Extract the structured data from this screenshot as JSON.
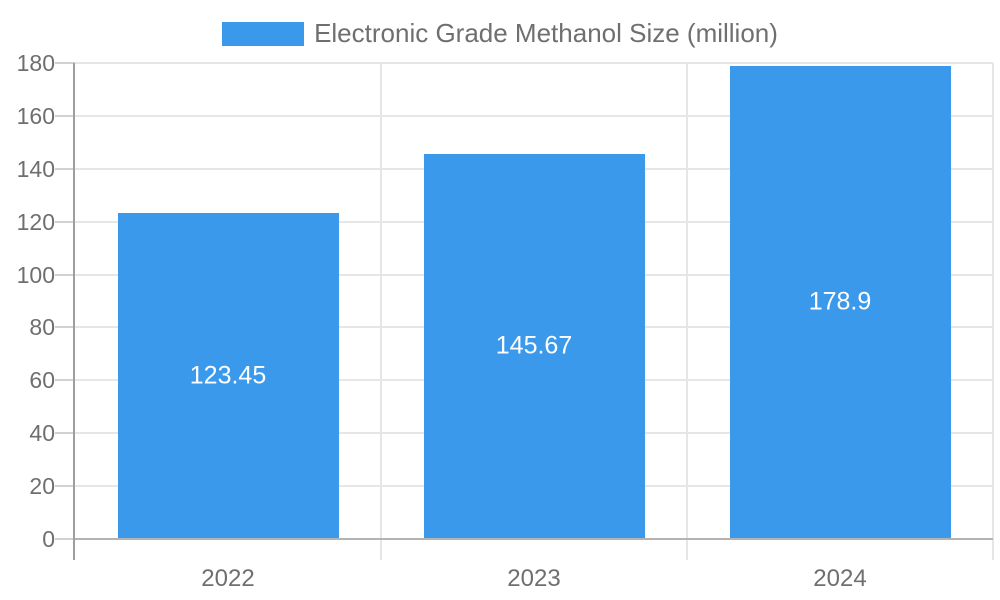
{
  "legend": {
    "label": "Electronic Grade Methanol Size (million)"
  },
  "colors": {
    "background": "#ffffff",
    "bar": "#3b99ec",
    "bar_label": "#ffffff",
    "axis_text": "#6f6f6f",
    "grid": "#e6e6e6",
    "tick": "#d2d2d2",
    "axis_line": "#9e9e9e",
    "baseline": "#b3b3b3"
  },
  "chart_data": {
    "type": "bar",
    "categories": [
      "2022",
      "2023",
      "2024"
    ],
    "series": [
      {
        "name": "Electronic Grade Methanol Size (million)",
        "values": [
          123.45,
          145.67,
          178.9
        ]
      }
    ],
    "bar_labels": [
      "123.45",
      "145.67",
      "178.9"
    ],
    "ylim": [
      0,
      180
    ],
    "yticks": [
      0,
      20,
      40,
      60,
      80,
      100,
      120,
      140,
      160,
      180
    ],
    "grid": true,
    "legend_position": "top",
    "bar_label_position": "middle"
  }
}
